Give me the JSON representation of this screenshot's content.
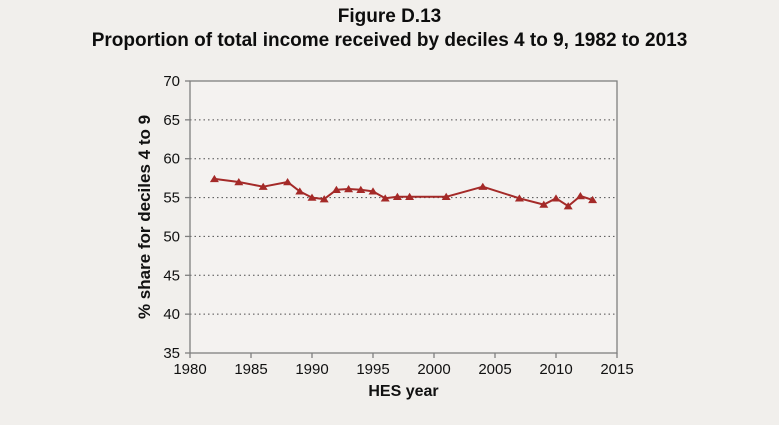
{
  "title": {
    "line1": "Figure D.13",
    "line2": "Proportion of total income received by deciles 4 to 9, 1982 to 2013"
  },
  "chart_data": {
    "type": "line",
    "title": "Proportion of total income received by deciles 4 to 9, 1982 to 2013",
    "xlabel": "HES year",
    "ylabel": "% share for deciles 4 to 9",
    "xlim": [
      1980,
      2015
    ],
    "ylim": [
      35,
      70
    ],
    "xticks": [
      1980,
      1985,
      1990,
      1995,
      2000,
      2005,
      2010,
      2015
    ],
    "yticks": [
      35,
      40,
      45,
      50,
      55,
      60,
      65,
      70
    ],
    "gridlines": {
      "horizontal_at": [
        40,
        45,
        50,
        55,
        60,
        65
      ],
      "style": "dotted"
    },
    "legend_position": "none",
    "x": [
      1982,
      1984,
      1986,
      1988,
      1989,
      1990,
      1991,
      1992,
      1993,
      1994,
      1995,
      1996,
      1997,
      1998,
      2001,
      2004,
      2007,
      2009,
      2010,
      2011,
      2012,
      2013
    ],
    "series": [
      {
        "name": "% share for deciles 4 to 9",
        "marker": "triangle-up",
        "color": "#a42a28",
        "values": [
          57.4,
          57.0,
          56.4,
          57.0,
          55.8,
          55.0,
          54.8,
          56.0,
          56.1,
          56.0,
          55.8,
          54.9,
          55.1,
          55.1,
          55.1,
          56.4,
          54.9,
          54.1,
          54.9,
          53.9,
          55.2,
          54.7
        ]
      }
    ]
  },
  "colors": {
    "background": "#f1efec",
    "plot_background": "#f4f2f0",
    "frame": "#7f7f7f",
    "gridline": "#4d4d4d",
    "series": "#a42a28",
    "text": "#111111"
  }
}
